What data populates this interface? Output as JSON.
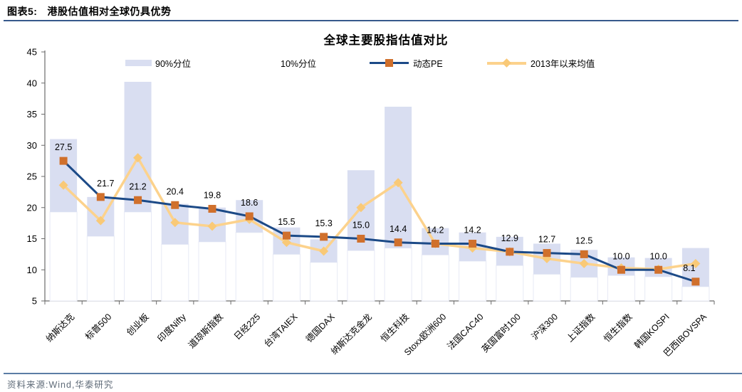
{
  "header": {
    "figure_label": "图表5:",
    "title": "港股估值相对全球仍具优势"
  },
  "footer": {
    "source": "资料来源:Wind,华泰研究"
  },
  "colors": {
    "range_bar": "#d9def1",
    "lower_bar": "#ffffff",
    "lower_bar_border": "#e7eaf5",
    "pe_line": "#1c4a87",
    "pe_marker": "#d0702c",
    "mean_line": "#fcd28c",
    "mean_marker": "#f9c977",
    "axis": "#6b6b6b",
    "top_rule": "#37598c",
    "bottom_rule": "#5b7da5",
    "source_text": "#5f6b78"
  },
  "chart_data": {
    "type": "combo: floating percentile range bars + two lines",
    "title": "全球主要股指估值对比",
    "ylim": [
      5,
      45
    ],
    "ytick_step": 5,
    "grid": false,
    "legend_position": "top",
    "categories": [
      "纳斯达克",
      "标普500",
      "创业板",
      "印度Nifty",
      "道琼斯指数",
      "日经225",
      "台湾TAIEX",
      "德国DAX",
      "纳斯达克金龙",
      "恒生科技",
      "Stoxx欧洲600",
      "法国CAC40",
      "英国富时100",
      "沪深300",
      "上证指数",
      "恒生指数",
      "韩国KOSPI",
      "巴西IBOVSPA"
    ],
    "series": [
      {
        "name": "90%分位",
        "type": "range_top",
        "color": "#d9def1",
        "values": [
          31.0,
          21.7,
          40.2,
          20.6,
          20.0,
          21.2,
          16.8,
          14.9,
          26.0,
          36.2,
          16.7,
          16.0,
          15.3,
          14.2,
          13.2,
          12.0,
          11.9,
          13.5
        ]
      },
      {
        "name": "10%分位",
        "type": "range_bottom",
        "color": "#ffffff",
        "values": [
          19.3,
          15.4,
          19.3,
          14.1,
          14.5,
          16.0,
          12.5,
          11.2,
          13.1,
          13.5,
          12.4,
          11.4,
          10.7,
          9.3,
          8.8,
          9.1,
          8.9,
          7.3
        ]
      },
      {
        "name": "动态PE",
        "type": "line",
        "marker": "square",
        "color": "#1c4a87",
        "marker_color": "#d0702c",
        "values": [
          27.5,
          21.7,
          21.2,
          20.4,
          19.8,
          18.6,
          15.5,
          15.3,
          15.0,
          14.4,
          14.2,
          14.2,
          12.9,
          12.7,
          12.5,
          10.0,
          10.0,
          8.1
        ],
        "labels": [
          "27.5",
          "21.7",
          "21.2",
          "20.4",
          "19.8",
          "18.6",
          "15.5",
          "15.3",
          "15.0",
          "14.4",
          "14.2",
          "14.2",
          "12.9",
          "12.7",
          "12.5",
          "10.0",
          "10.0",
          "8.1"
        ]
      },
      {
        "name": "2013年以来均值",
        "type": "line",
        "marker": "diamond",
        "color": "#fcd28c",
        "marker_color": "#f9c977",
        "values": [
          23.6,
          17.9,
          28.0,
          17.6,
          17.0,
          18.1,
          14.4,
          13.0,
          20.0,
          24.0,
          14.2,
          13.5,
          12.9,
          11.8,
          11.0,
          10.3,
          10.1,
          11.0
        ]
      }
    ]
  }
}
